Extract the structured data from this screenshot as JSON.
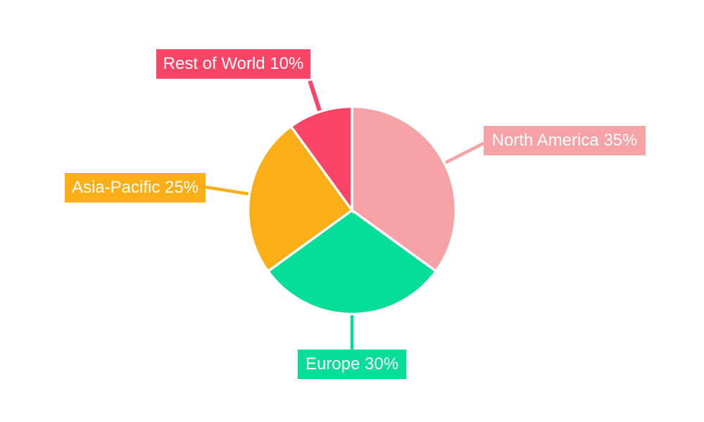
{
  "page": {
    "background": "#FFFFFF"
  },
  "chart_data": {
    "type": "pie",
    "title": "",
    "legend_position": "none",
    "label_style": "callout-boxes-with-leader-lines",
    "start_angle_deg": -90,
    "direction": "clockwise",
    "slice_gap_color": "#FFFFFF",
    "label_text_color": "#FFFFFF",
    "segments": [
      {
        "label": "North America",
        "value": 35,
        "unit": "%",
        "display": "North America 35%",
        "color": "#F7A2A7"
      },
      {
        "label": "Europe",
        "value": 30,
        "unit": "%",
        "display": "Europe 30%",
        "color": "#05DE96"
      },
      {
        "label": "Asia-Pacific",
        "value": 25,
        "unit": "%",
        "display": "Asia-Pacific 25%",
        "color": "#FCAE17"
      },
      {
        "label": "Rest of World",
        "value": 10,
        "unit": "%",
        "display": "Rest of World 10%",
        "color": "#FB4566"
      }
    ]
  }
}
